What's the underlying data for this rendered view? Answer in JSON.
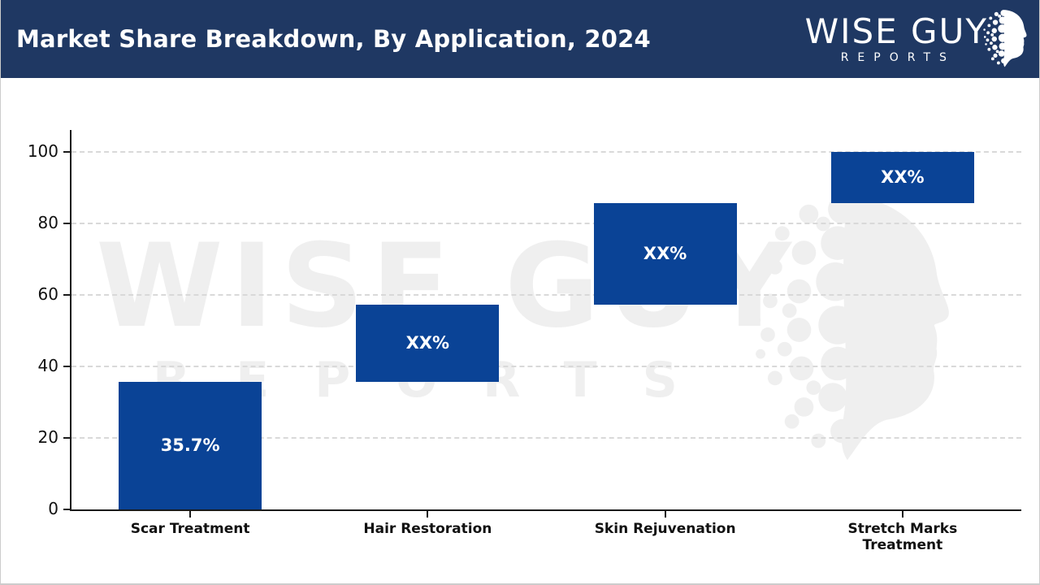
{
  "header": {
    "title": "Market Share Breakdown, By Application, 2024",
    "bg_color": "#1f3863",
    "logo": {
      "line1": "WISE GUY",
      "line2": "REPORTS"
    }
  },
  "watermark": {
    "line1": "WISE GUY",
    "line2": "REPORTS"
  },
  "chart_data": {
    "type": "bar",
    "subtype": "waterfall",
    "title": "Market Share Breakdown, By Application, 2024",
    "categories": [
      "Scar Treatment",
      "Hair Restoration",
      "Skin Rejuvenation",
      "Stretch Marks Treatment"
    ],
    "bars": [
      {
        "category": "Scar Treatment",
        "start": 0,
        "end": 35.7,
        "label": "35.7%"
      },
      {
        "category": "Hair Restoration",
        "start": 35.7,
        "end": 57.3,
        "label": "XX%"
      },
      {
        "category": "Skin Rejuvenation",
        "start": 57.3,
        "end": 85.7,
        "label": "XX%"
      },
      {
        "category": "Stretch Marks Treatment",
        "start": 85.7,
        "end": 100,
        "label": "XX%"
      }
    ],
    "xlabel": "",
    "ylabel": "",
    "ylim": [
      0,
      100
    ],
    "yticks": [
      0,
      20,
      40,
      60,
      80,
      100
    ],
    "grid": "horizontal-dashed",
    "legend": "none",
    "bar_color": "#0a4396",
    "bar_label_color": "#ffffff",
    "grid_color": "#d9d9d9",
    "axis_color": "#1a1a1a",
    "tick_label_color": "#111111"
  }
}
